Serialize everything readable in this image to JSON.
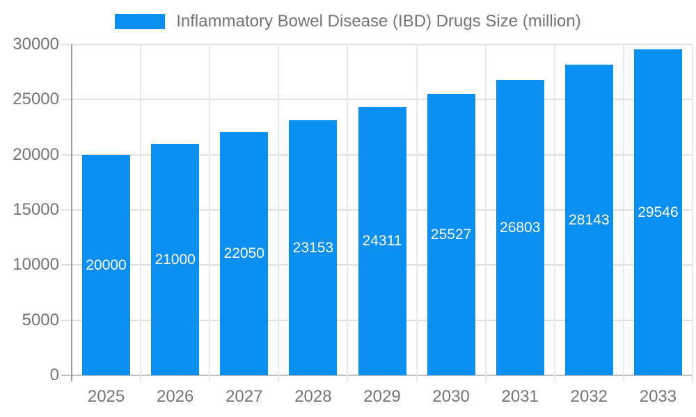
{
  "chart_data": {
    "type": "bar",
    "title": "Inflammatory Bowel Disease (IBD) Drugs Size (million)",
    "categories": [
      "2025",
      "2026",
      "2027",
      "2028",
      "2029",
      "2030",
      "2031",
      "2032",
      "2033"
    ],
    "values": [
      20000,
      21000,
      22050,
      23153,
      24311,
      25527,
      26803,
      28143,
      29546
    ],
    "data_labels_shown": true,
    "xlabel": "",
    "ylabel": "",
    "ylim": [
      0,
      30000
    ],
    "yticks": [
      0,
      5000,
      10000,
      15000,
      20000,
      25000,
      30000
    ],
    "grid": "horizontal and vertical light gray",
    "legend_position": "top-center",
    "colors": {
      "bar": "#0b90f2",
      "bar_label": "#ffffff",
      "axis_label": "#757575",
      "grid_line": "#e0e0e0",
      "vertical_grid_line": "#e7e7e7",
      "baseline": "#c2c2c2",
      "axis_line": "#9e9e9e",
      "background": "#ffffff"
    }
  }
}
